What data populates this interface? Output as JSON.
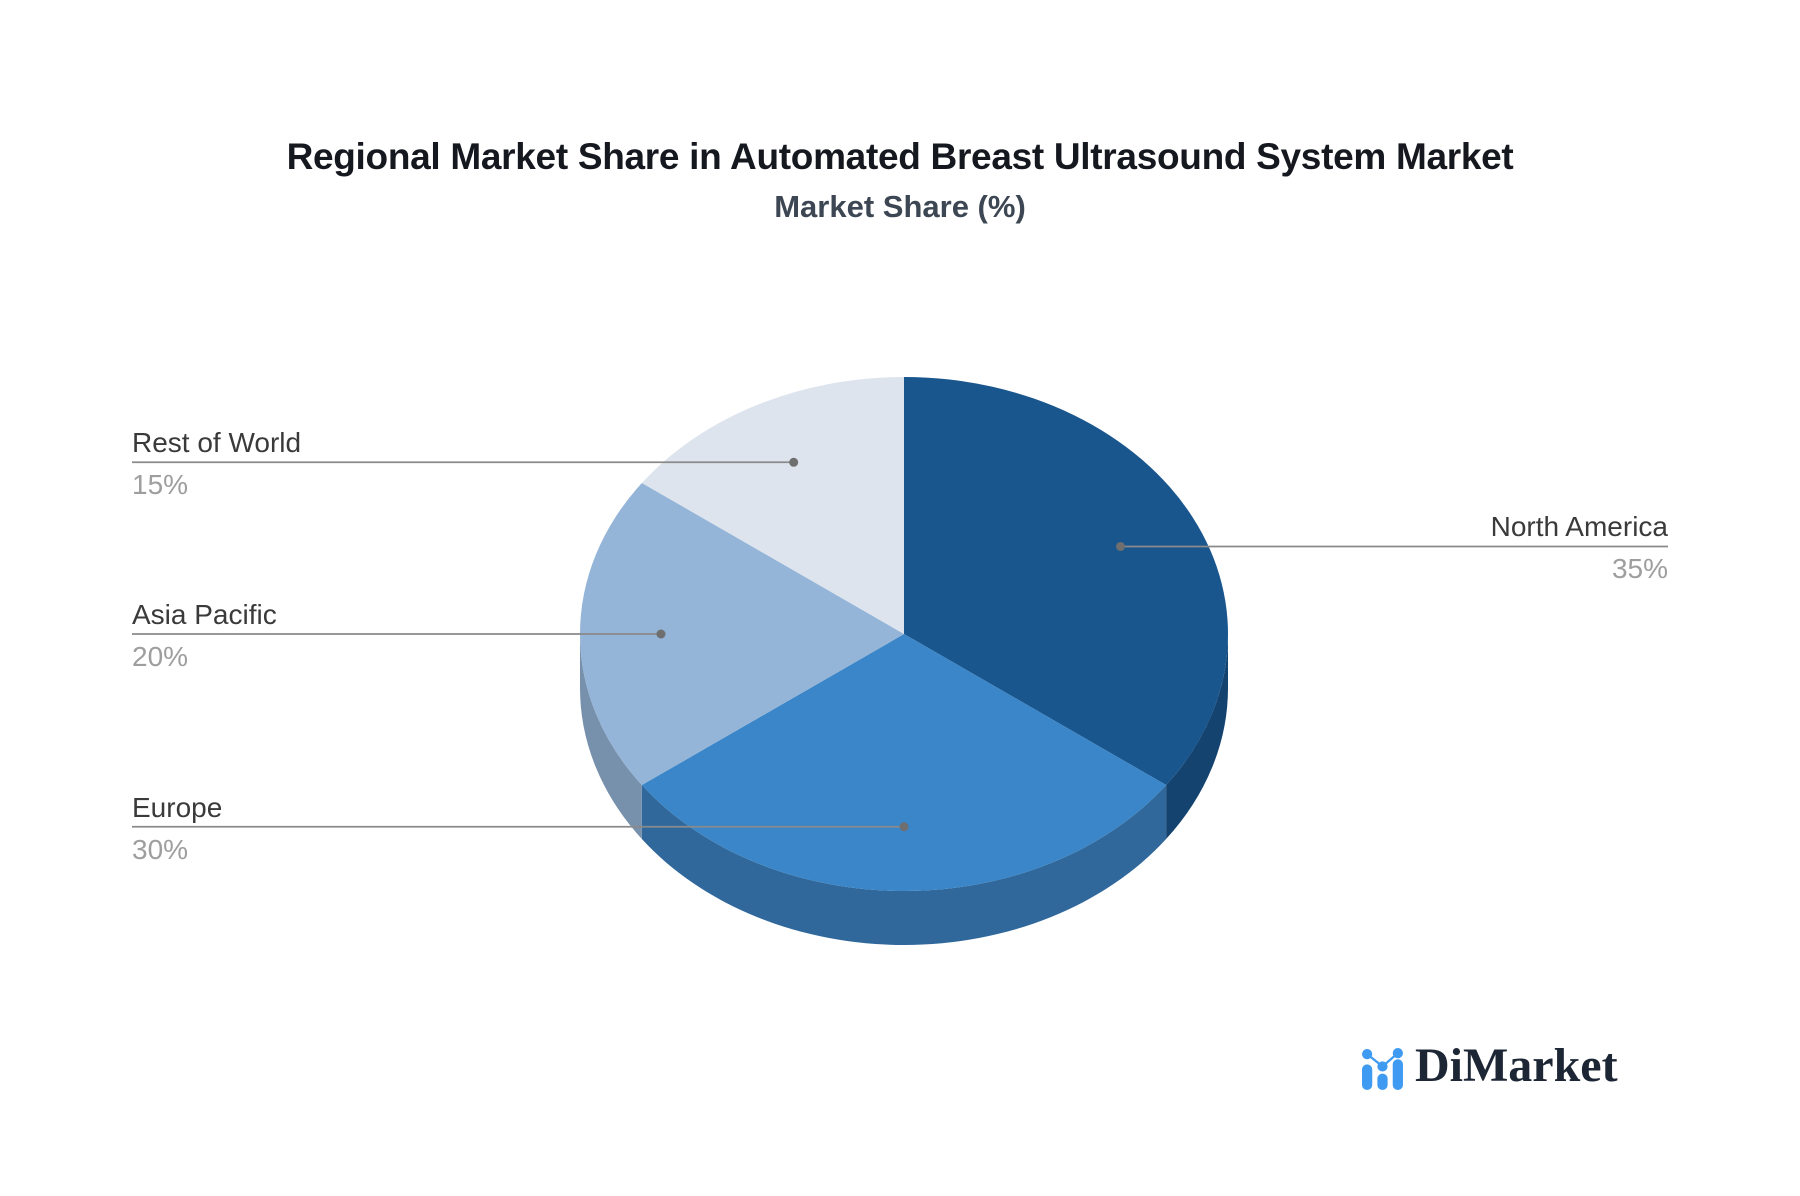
{
  "header": {
    "title": "Regional Market Share in Automated Breast Ultrasound System Market",
    "subtitle": "Market Share (%)"
  },
  "chart_data": {
    "type": "pie",
    "style": "3d-extruded",
    "title": "Regional Market Share in Automated Breast Ultrasound System Market",
    "subtitle": "Market Share (%)",
    "unit": "%",
    "start_angle_deg": 0,
    "direction": "clockwise",
    "legend_position": "none",
    "labels": "callout-lines-with-dots",
    "slices": [
      {
        "label": "North America",
        "value": 35,
        "value_label": "35%",
        "color": "#1a568e",
        "side_color": "#15436f",
        "callout_side": "right"
      },
      {
        "label": "Europe",
        "value": 30,
        "value_label": "30%",
        "color": "#3a86c8",
        "side_color": "#30689c",
        "callout_side": "left"
      },
      {
        "label": "Asia Pacific",
        "value": 20,
        "value_label": "20%",
        "color": "#94b5d7",
        "side_color": "#7791ad",
        "callout_side": "left"
      },
      {
        "label": "Rest of World",
        "value": 15,
        "value_label": "15%",
        "color": "#dde4ee",
        "side_color": "#b3bfce",
        "callout_side": "left"
      }
    ],
    "callout_line_color": "#8a8a8a",
    "callout_dot_color": "#6f6f6f"
  },
  "logo": {
    "text": "DiMarket",
    "icon": "bar-chart-trend-icon",
    "icon_color": "#3f9bf2",
    "text_color": "#1c2634"
  }
}
